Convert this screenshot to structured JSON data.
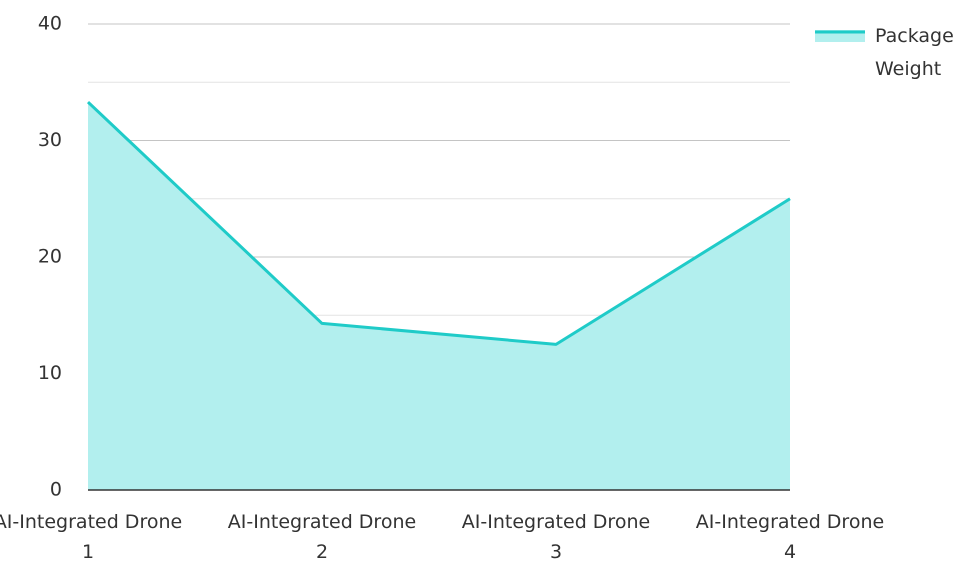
{
  "chart_data": {
    "type": "area",
    "categories": [
      "AI-Integrated Drone 1",
      "AI-Integrated Drone 2",
      "AI-Integrated Drone 3",
      "AI-Integrated Drone 4"
    ],
    "series": [
      {
        "name": "Package Weight",
        "color": "#1fcbc8",
        "fill": "#b2efee",
        "values": [
          33.3,
          14.3,
          12.5,
          25
        ]
      }
    ],
    "ylim": [
      0,
      40
    ],
    "yticks": [
      0,
      10,
      20,
      30,
      40
    ],
    "grid": true,
    "minor_grid": true,
    "legend": "top-right"
  }
}
